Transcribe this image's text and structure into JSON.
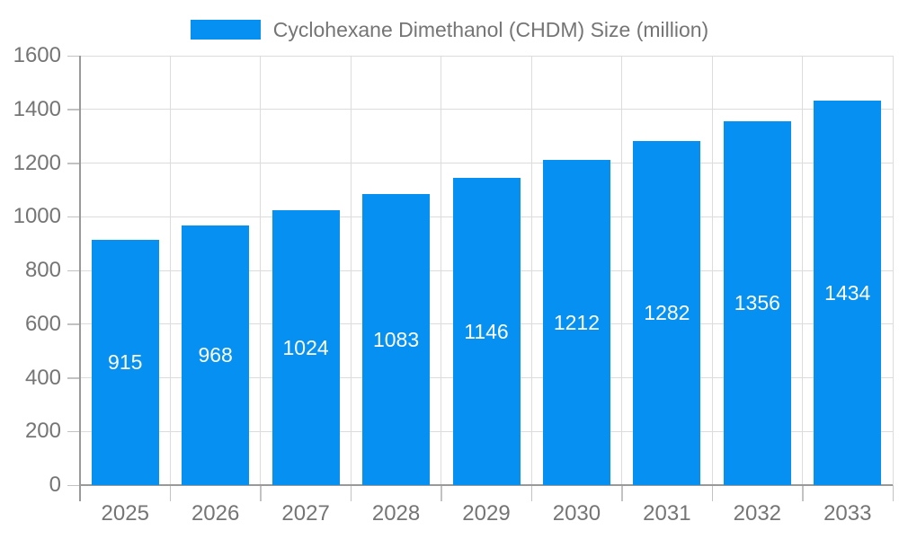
{
  "chart_data": {
    "type": "bar",
    "title": "Cyclohexane Dimethanol (CHDM) Size (million)",
    "categories": [
      "2025",
      "2026",
      "2027",
      "2028",
      "2029",
      "2030",
      "2031",
      "2032",
      "2033"
    ],
    "values": [
      915,
      968,
      1024,
      1083,
      1146,
      1212,
      1282,
      1356,
      1434
    ],
    "series": [
      {
        "name": "Cyclohexane Dimethanol (CHDM) Size (million)",
        "values": [
          915,
          968,
          1024,
          1083,
          1146,
          1212,
          1282,
          1356,
          1434
        ]
      }
    ],
    "xlabel": "",
    "ylabel": "",
    "ylim": [
      0,
      1600
    ],
    "ytick_step": 200,
    "yticks": [
      0,
      200,
      400,
      600,
      800,
      1000,
      1200,
      1400,
      1600
    ],
    "grid": true,
    "legend_position": "top",
    "value_label_position": "inside-center",
    "colors": {
      "bar": "#0590F2",
      "value_label": "#FFFFFF",
      "axis_text": "#757575",
      "gridline": "#DCDCDC",
      "axis_line": "#999999",
      "tick": "#C2C2C2",
      "background": "#FFFFFF"
    }
  },
  "legend": {
    "label": "Cyclohexane Dimethanol (CHDM) Size (million)"
  }
}
